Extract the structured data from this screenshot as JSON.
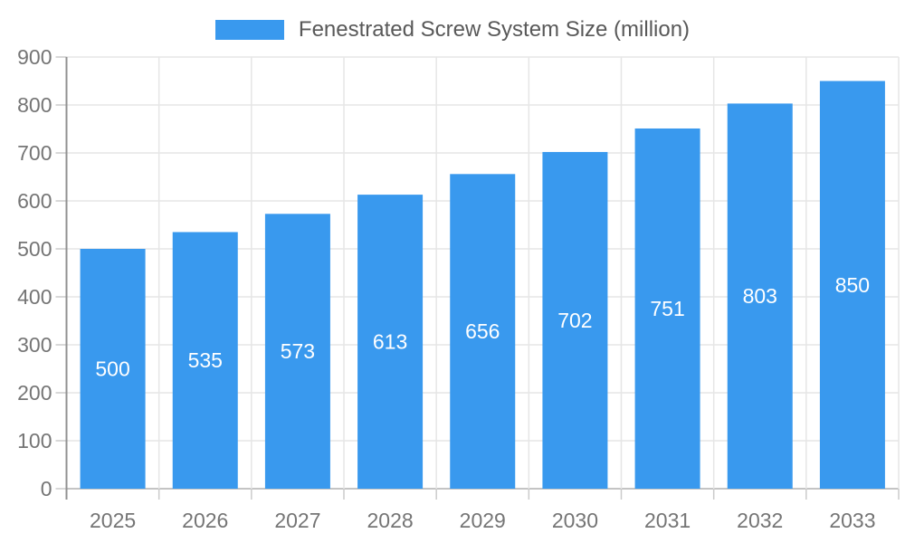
{
  "chart_data": {
    "type": "bar",
    "title": "Fenestrated Screw System Size (million)",
    "legend": {
      "position": "top",
      "label": "Fenestrated Screw System Size (million)"
    },
    "categories": [
      "2025",
      "2026",
      "2027",
      "2028",
      "2029",
      "2030",
      "2031",
      "2032",
      "2033"
    ],
    "series": [
      {
        "name": "Fenestrated Screw System Size (million)",
        "values": [
          500,
          535,
          573,
          613,
          656,
          702,
          751,
          803,
          850
        ]
      }
    ],
    "xlabel": "",
    "ylabel": "",
    "ylim": [
      0,
      900
    ],
    "ytick_step": 100,
    "grid": true,
    "value_labels": "centered-inside-bars",
    "colors": {
      "bar": "#3999EE",
      "value_label": "#FFFFFF",
      "grid_line": "#E6E6E6",
      "axis_line": "#919191",
      "baseline": "#B0B0B0",
      "tick": "#CBCBCB",
      "tick_label": "#757575",
      "legend_text": "#595959",
      "background": "#FFFFFF"
    }
  }
}
